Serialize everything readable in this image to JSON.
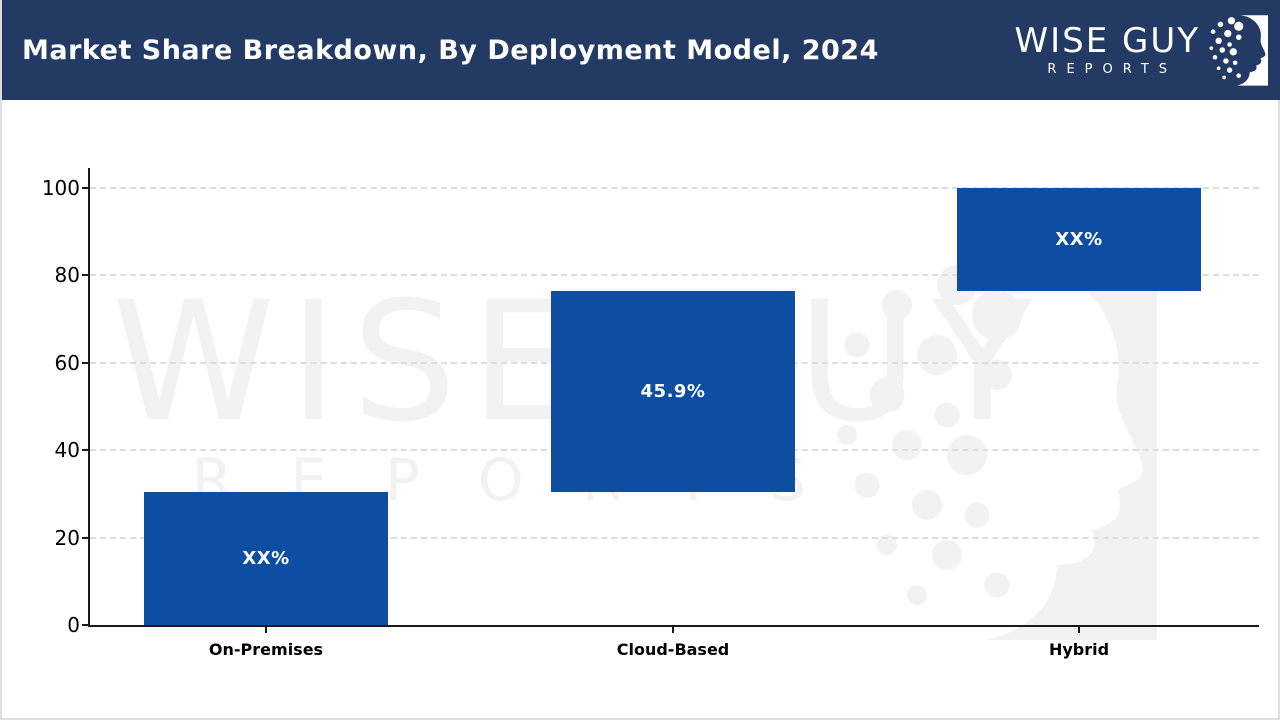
{
  "header": {
    "title": "Market Share Breakdown, By Deployment Model, 2024",
    "logo": {
      "line1": "WISE GUY",
      "line2": "REPORTS"
    }
  },
  "watermark": {
    "line1": "WISE GUY",
    "line2": "REPORTS"
  },
  "colors": {
    "header_bg": "#223a64",
    "bar": "#0d4da2",
    "grid": "#dcdcdc",
    "axis": "#1a1a1a",
    "bar_label": "#ffffff",
    "watermark": "#f2f2f2"
  },
  "chart_data": {
    "type": "bar",
    "subtype": "floating-waterfall",
    "title": "Market Share Breakdown, By Deployment Model, 2024",
    "categories": [
      "On-Premises",
      "Cloud-Based",
      "Hybrid"
    ],
    "series": [
      {
        "name": "Market Share (%)",
        "segments": [
          {
            "category": "On-Premises",
            "start": 0,
            "end": 30.4,
            "label": "XX%"
          },
          {
            "category": "Cloud-Based",
            "start": 30.4,
            "end": 76.3,
            "label": "45.9%"
          },
          {
            "category": "Hybrid",
            "start": 76.3,
            "end": 100,
            "label": "XX%"
          }
        ]
      }
    ],
    "xlabel": "",
    "ylabel": "",
    "ylim": [
      0,
      100
    ],
    "yticks": [
      0,
      20,
      40,
      60,
      80,
      100
    ],
    "grid": "dashed-horizontal",
    "legend": "none",
    "bar_color": "#0d4da2"
  }
}
